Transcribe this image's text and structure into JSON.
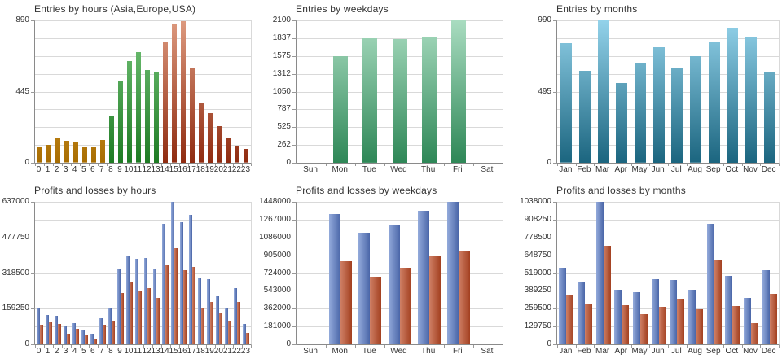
{
  "chart_data": [
    {
      "type": "bar",
      "title": "Entries by hours (Asia,Europe,USA)",
      "categories": [
        "0",
        "1",
        "2",
        "3",
        "4",
        "5",
        "6",
        "7",
        "8",
        "9",
        "10",
        "11",
        "12",
        "13",
        "14",
        "15",
        "16",
        "17",
        "18",
        "19",
        "20",
        "21",
        "22",
        "23"
      ],
      "values": [
        100,
        110,
        155,
        135,
        125,
        95,
        95,
        142,
        295,
        510,
        635,
        690,
        580,
        570,
        760,
        868,
        885,
        590,
        375,
        312,
        228,
        158,
        105,
        85
      ],
      "ylim": [
        0,
        890
      ],
      "yticks": [
        "0",
        "445",
        "890"
      ],
      "grid": true,
      "legend": "none",
      "color_segments": [
        {
          "from": 0,
          "to": 7,
          "light": "#f6b94a",
          "dark": "#a86d02"
        },
        {
          "from": 8,
          "to": 13,
          "light": "#79c77d",
          "dark": "#1e7b24"
        },
        {
          "from": 14,
          "to": 23,
          "light": "#dd9a7f",
          "dark": "#8f2b10"
        }
      ]
    },
    {
      "type": "bar",
      "title": "Entries by weekdays",
      "categories": [
        "Sun",
        "Mon",
        "Tue",
        "Wed",
        "Thu",
        "Fri",
        "Sat"
      ],
      "values": [
        0,
        1575,
        1835,
        1830,
        1865,
        2100,
        0
      ],
      "ylim": [
        0,
        2100
      ],
      "yticks": [
        "0",
        "262",
        "525",
        "787",
        "1050",
        "1312",
        "1575",
        "1837",
        "2100"
      ],
      "grid": true,
      "legend": "none",
      "colors": {
        "light": "#a9dcc0",
        "dark": "#2e8757"
      }
    },
    {
      "type": "bar",
      "title": "Entries by months",
      "categories": [
        "Jan",
        "Feb",
        "Mar",
        "Apr",
        "May",
        "Jun",
        "Jul",
        "Aug",
        "Sep",
        "Oct",
        "Nov",
        "Dec"
      ],
      "values": [
        830,
        640,
        990,
        555,
        695,
        805,
        663,
        740,
        838,
        935,
        878,
        635
      ],
      "ylim": [
        0,
        990
      ],
      "yticks": [
        "0",
        "495",
        "990"
      ],
      "grid": true,
      "legend": "none",
      "colors": {
        "light": "#93d2ea",
        "dark": "#1b657f"
      }
    },
    {
      "type": "bar",
      "title": "Profits and losses by hours",
      "categories": [
        "0",
        "1",
        "2",
        "3",
        "4",
        "5",
        "6",
        "7",
        "8",
        "9",
        "10",
        "11",
        "12",
        "13",
        "14",
        "15",
        "16",
        "17",
        "18",
        "19",
        "20",
        "21",
        "22",
        "23"
      ],
      "series": [
        {
          "name": "Profits",
          "values": [
            160000,
            130000,
            128000,
            85000,
            95000,
            62000,
            48000,
            115000,
            163000,
            335000,
            395000,
            383000,
            387000,
            340000,
            540000,
            637000,
            545000,
            580000,
            297000,
            293000,
            213000,
            165000,
            250000,
            90000
          ],
          "light": "#93aadb",
          "dark": "#4a66a8"
        },
        {
          "name": "Losses",
          "values": [
            88000,
            97000,
            90000,
            46000,
            68000,
            41000,
            22000,
            88000,
            107000,
            230000,
            275000,
            238000,
            253000,
            208000,
            353000,
            430000,
            330000,
            347000,
            165000,
            188000,
            143000,
            105000,
            188000,
            52000
          ],
          "light": "#cf8066",
          "dark": "#a34020"
        }
      ],
      "ylim": [
        0,
        637000
      ],
      "yticks": [
        "0",
        "159250",
        "318500",
        "477750",
        "637000"
      ],
      "grid": true,
      "legend": "none"
    },
    {
      "type": "bar",
      "title": "Profits and losses by weekdays",
      "categories": [
        "Sun",
        "Mon",
        "Tue",
        "Wed",
        "Thu",
        "Fri",
        "Sat"
      ],
      "series": [
        {
          "name": "Profits",
          "values": [
            0,
            1320000,
            1135000,
            1205000,
            1360000,
            1448000,
            0
          ],
          "light": "#93aadb",
          "dark": "#4a66a8"
        },
        {
          "name": "Losses",
          "values": [
            0,
            848000,
            685000,
            780000,
            897000,
            945000,
            0
          ],
          "light": "#cf8066",
          "dark": "#a34020"
        }
      ],
      "ylim": [
        0,
        1448000
      ],
      "yticks": [
        "0",
        "181000",
        "362000",
        "543000",
        "724000",
        "905000",
        "1086000",
        "1267000",
        "1448000"
      ],
      "grid": true,
      "legend": "none"
    },
    {
      "type": "bar",
      "title": "Profits and losses by months",
      "categories": [
        "Jan",
        "Feb",
        "Mar",
        "Apr",
        "May",
        "Jun",
        "Jul",
        "Aug",
        "Sep",
        "Oct",
        "Nov",
        "Dec"
      ],
      "series": [
        {
          "name": "Profits",
          "values": [
            560000,
            458000,
            1038000,
            398000,
            380000,
            472000,
            468000,
            400000,
            878000,
            500000,
            340000,
            537000
          ],
          "light": "#93aadb",
          "dark": "#4a66a8"
        },
        {
          "name": "Losses",
          "values": [
            357000,
            290000,
            715000,
            285000,
            217000,
            270000,
            333000,
            256000,
            618000,
            278000,
            153000,
            366000
          ],
          "light": "#cf8066",
          "dark": "#a34020"
        }
      ],
      "ylim": [
        0,
        1038000
      ],
      "yticks": [
        "0",
        "129750",
        "259500",
        "389250",
        "519000",
        "648750",
        "778500",
        "908250",
        "1038000"
      ],
      "grid": true,
      "legend": "none"
    }
  ]
}
